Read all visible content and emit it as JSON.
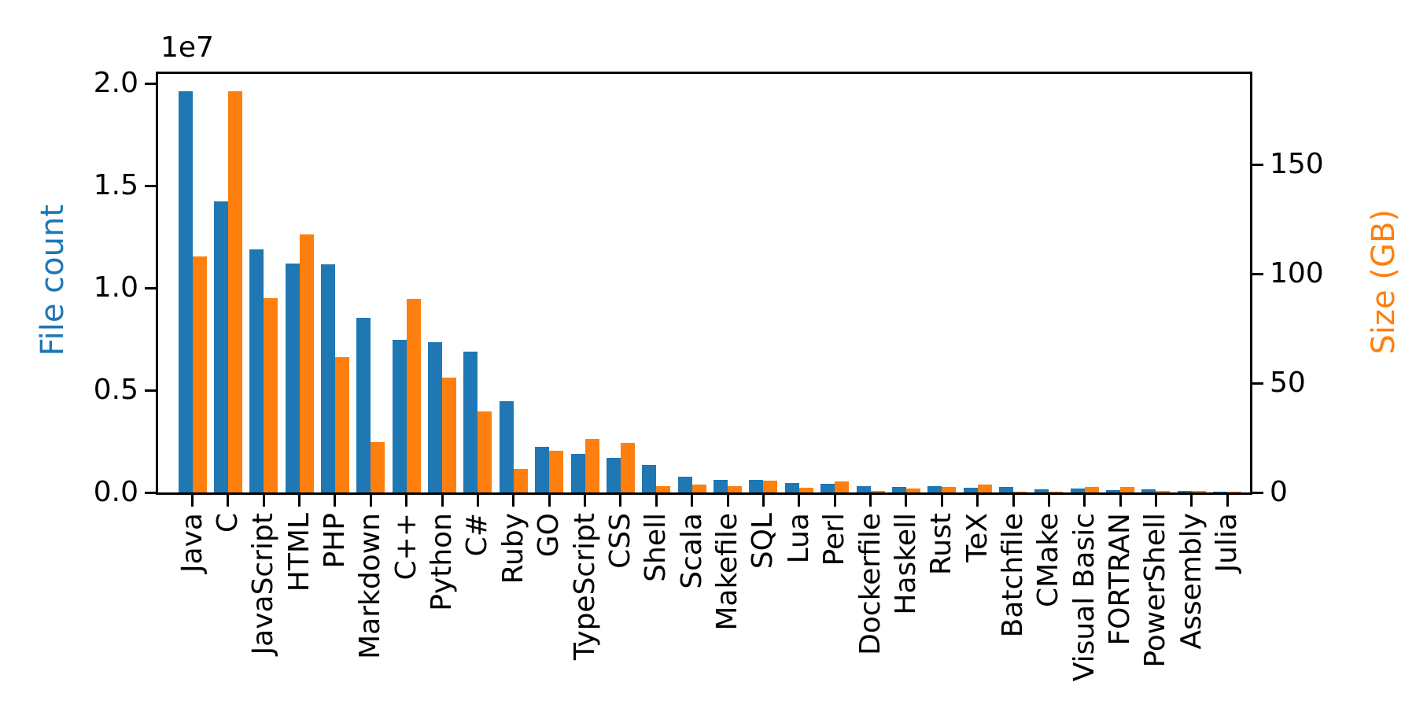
{
  "figure": {
    "background": "#ffffff"
  },
  "chart_data": {
    "type": "bar",
    "dual_axis": true,
    "grid": false,
    "legend": "none",
    "categories": [
      "Java",
      "C",
      "JavaScript",
      "HTML",
      "PHP",
      "Markdown",
      "C++",
      "Python",
      "C#",
      "Ruby",
      "GO",
      "TypeScript",
      "CSS",
      "Shell",
      "Scala",
      "Makefile",
      "SQL",
      "Lua",
      "Perl",
      "Dockerfile",
      "Haskell",
      "Rust",
      "TeX",
      "Batchfile",
      "CMake",
      "Visual Basic",
      "FORTRAN",
      "PowerShell",
      "Assembly",
      "Julia"
    ],
    "series": [
      {
        "name": "File count",
        "axis": "left",
        "color": "#1f77b4",
        "values": [
          19600000,
          14250000,
          11900000,
          11200000,
          11150000,
          8550000,
          7450000,
          7330000,
          6900000,
          4450000,
          2240000,
          1900000,
          1700000,
          1350000,
          770000,
          630000,
          630000,
          460000,
          420000,
          320000,
          270000,
          300000,
          250000,
          280000,
          160000,
          200000,
          130000,
          160000,
          80000,
          40000
        ]
      },
      {
        "name": "Size (GB)",
        "axis": "right",
        "color": "#ff7f0e",
        "values": [
          108,
          183.5,
          89,
          118,
          62,
          23,
          88.5,
          52.5,
          37,
          10.7,
          19,
          24.5,
          22.7,
          2.9,
          3.5,
          3.0,
          5.5,
          2.2,
          4.9,
          0.6,
          1.9,
          2.5,
          3.5,
          0.4,
          0.5,
          2.7,
          2.5,
          0.6,
          0.9,
          0.3
        ]
      }
    ],
    "left_axis": {
      "label": "File count",
      "color": "#1f77b4",
      "offset_text": "1e7",
      "range": [
        0,
        20600000
      ],
      "ticks": [
        {
          "value": 0,
          "label": "0.0"
        },
        {
          "value": 5000000,
          "label": "0.5"
        },
        {
          "value": 10000000,
          "label": "1.0"
        },
        {
          "value": 15000000,
          "label": "1.5"
        },
        {
          "value": 20000000,
          "label": "2.0"
        }
      ]
    },
    "right_axis": {
      "label": "Size (GB)",
      "color": "#ff7f0e",
      "range": [
        0,
        192
      ],
      "ticks": [
        {
          "value": 0,
          "label": "0"
        },
        {
          "value": 50,
          "label": "50"
        },
        {
          "value": 100,
          "label": "100"
        },
        {
          "value": 150,
          "label": "150"
        }
      ]
    }
  }
}
